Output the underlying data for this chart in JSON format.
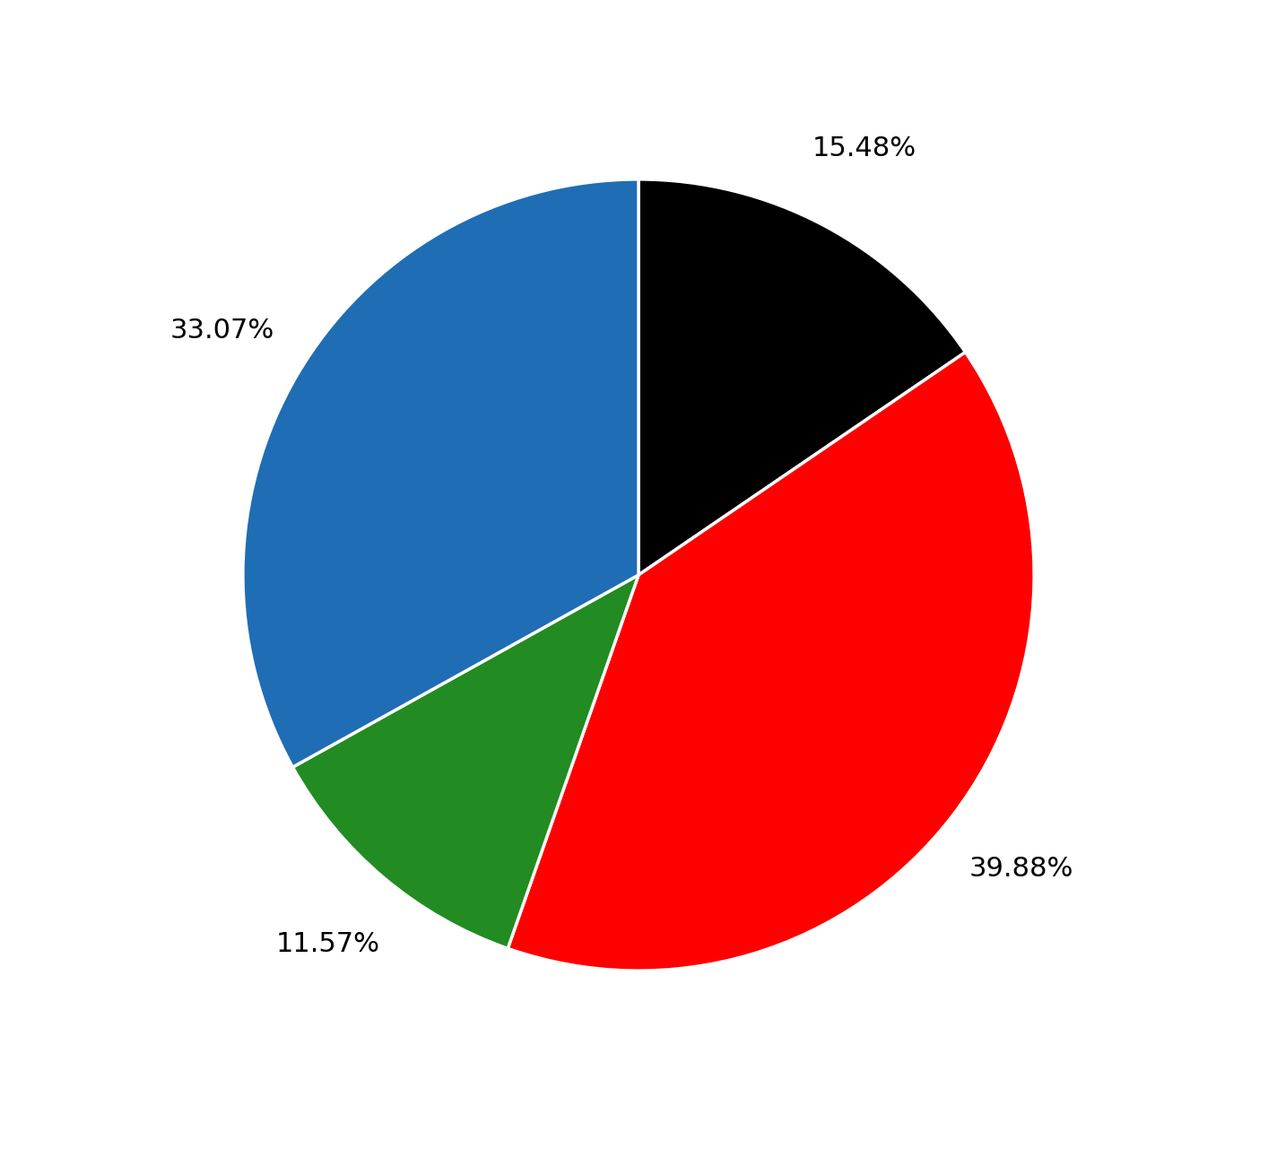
{
  "slices": [
    15.48,
    39.88,
    11.57,
    33.07
  ],
  "colors": [
    "#000000",
    "#ff0000",
    "#228B22",
    "#1f6db5"
  ],
  "labels": [
    "15.48%",
    "39.88%",
    "11.57%",
    "33.07%"
  ],
  "startangle": 90,
  "background_color": "#ffffff",
  "label_fontsize": 22,
  "label_color": "#000000"
}
